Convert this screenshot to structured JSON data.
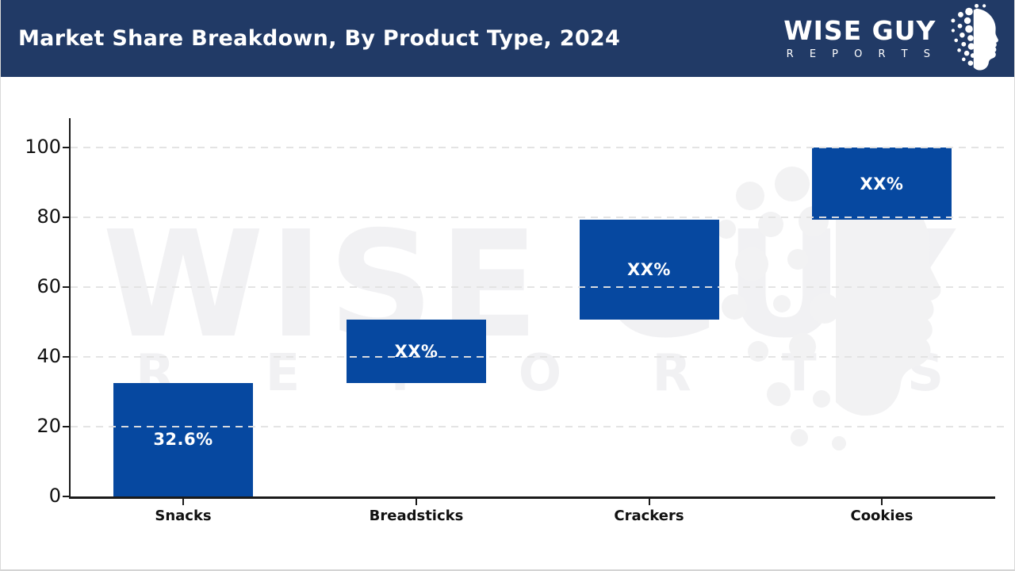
{
  "header": {
    "title": "Market Share Breakdown, By Product Type, 2024",
    "logo": {
      "line1": "WISE GUY",
      "line2": "R E P O R T S"
    }
  },
  "watermark": {
    "line1": "WISE GUY",
    "line2": "R E P O R T S"
  },
  "chart_data": {
    "type": "bar",
    "subtype": "waterfall",
    "title": "Market Share Breakdown, By Product Type, 2024",
    "categories": [
      "Snacks",
      "Breadsticks",
      "Crackers",
      "Cookies"
    ],
    "segments": [
      {
        "category": "Snacks",
        "start": 0,
        "end": 32.6,
        "label": "32.6%"
      },
      {
        "category": "Breadsticks",
        "start": 32.6,
        "end": 50.7,
        "label": "XX%"
      },
      {
        "category": "Crackers",
        "start": 50.7,
        "end": 79.3,
        "label": "XX%"
      },
      {
        "category": "Cookies",
        "start": 79.3,
        "end": 100,
        "label": "XX%"
      }
    ],
    "ylim": [
      0,
      100
    ],
    "yticks": [
      0,
      20,
      40,
      60,
      80,
      100
    ],
    "xlabel": "",
    "ylabel": "",
    "grid": "horizontal-dashed-above-bars",
    "legend": "none",
    "colors": {
      "bar": "#0648a0",
      "bar_label": "#ffffff",
      "axis": "#1a1a1a",
      "gridline": "#e2e2e2",
      "header_bg": "#213a66",
      "header_text": "#ffffff",
      "watermark": "#f1f1f3",
      "tick_label": "#111111"
    }
  }
}
